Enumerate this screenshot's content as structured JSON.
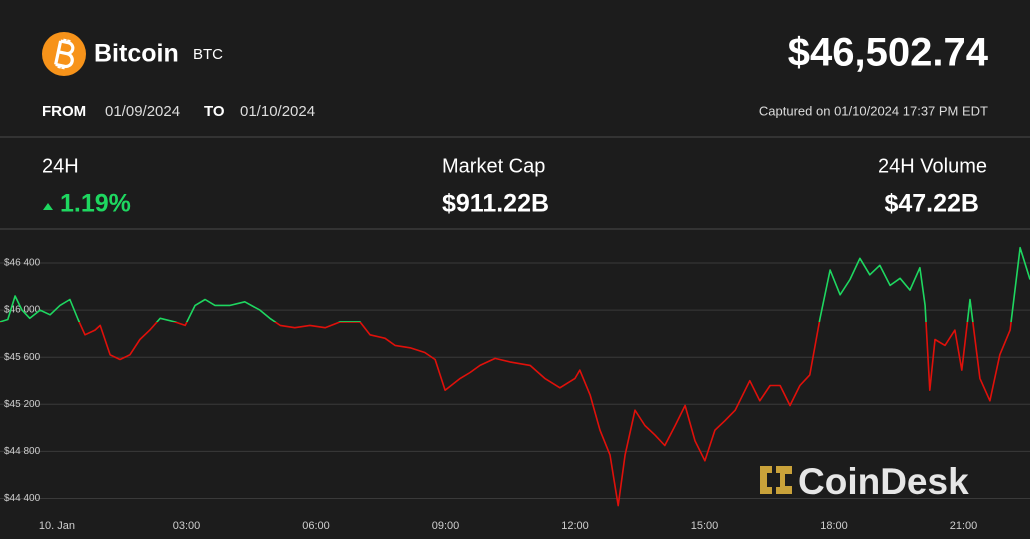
{
  "header": {
    "name": "Bitcoin",
    "symbol": "BTC",
    "price": "$46,502.74",
    "from_label": "FROM",
    "from": "01/09/2024",
    "to_label": "TO",
    "to": "01/10/2024",
    "captured": "Captured on 01/10/2024 17:37 PM EDT"
  },
  "stats": [
    {
      "label": "24H",
      "value": "1.19%"
    },
    {
      "label": "Market Cap",
      "value": "$911.22B"
    },
    {
      "label": "24H Volume",
      "value": "$47.22B"
    }
  ],
  "watermark": "CoinDesk",
  "chart_data": {
    "type": "line",
    "x": [
      -1.32,
      -1.14,
      -0.97,
      -0.81,
      -0.63,
      -0.39,
      -0.16,
      0.07,
      0.3,
      0.49,
      0.65,
      0.88,
      1.0,
      1.23,
      1.46,
      1.69,
      1.92,
      2.15,
      2.39,
      2.73,
      2.97,
      3.2,
      3.43,
      3.66,
      4.01,
      4.35,
      4.7,
      4.93,
      5.17,
      5.51,
      5.86,
      6.21,
      6.56,
      6.79,
      7.02,
      7.25,
      7.6,
      7.83,
      8.18,
      8.52,
      8.76,
      8.99,
      9.34,
      9.57,
      9.8,
      10.15,
      10.49,
      10.96,
      11.3,
      11.65,
      12.0,
      12.11,
      12.35,
      12.58,
      12.81,
      13.0,
      13.16,
      13.39,
      13.62,
      13.85,
      14.08,
      14.32,
      14.55,
      14.78,
      15.01,
      15.24,
      15.47,
      15.71,
      16.05,
      16.28,
      16.52,
      16.75,
      16.98,
      17.21,
      17.44,
      17.67,
      17.91,
      18.14,
      18.37,
      18.6,
      18.83,
      19.06,
      19.3,
      19.53,
      19.76,
      19.99,
      20.11,
      20.22,
      20.34,
      20.57,
      20.8,
      20.96,
      21.15,
      21.38,
      21.61,
      21.84,
      22.08,
      22.31,
      22.54
    ],
    "values": [
      45900,
      45920,
      46120,
      46000,
      45930,
      46000,
      45960,
      46040,
      46090,
      45920,
      45790,
      45830,
      45870,
      45620,
      45580,
      45620,
      45750,
      45830,
      45930,
      45900,
      45870,
      46040,
      46090,
      46040,
      46040,
      46070,
      46000,
      45930,
      45870,
      45850,
      45870,
      45850,
      45900,
      45900,
      45900,
      45790,
      45760,
      45700,
      45680,
      45640,
      45580,
      45320,
      45420,
      45470,
      45530,
      45590,
      45560,
      45530,
      45420,
      45340,
      45420,
      45490,
      45280,
      44980,
      44770,
      44340,
      44770,
      45150,
      45020,
      44940,
      44850,
      45020,
      45190,
      44890,
      44720,
      44980,
      45060,
      45150,
      45400,
      45230,
      45360,
      45360,
      45190,
      45360,
      45450,
      45920,
      46340,
      46130,
      46260,
      46440,
      46300,
      46380,
      46210,
      46270,
      46170,
      46360,
      46040,
      45320,
      45750,
      45700,
      45830,
      45490,
      46090,
      45420,
      45230,
      45620,
      45830,
      46530,
      46260
    ],
    "up_color": "#1ed760",
    "down_color": "#e0100a",
    "xlim": [
      -1.32,
      22.54
    ],
    "ylim": [
      44260,
      46680
    ],
    "xticks": [
      {
        "value": 0,
        "label": "10. Jan"
      },
      {
        "value": 3,
        "label": "03:00"
      },
      {
        "value": 6,
        "label": "06:00"
      },
      {
        "value": 9,
        "label": "09:00"
      },
      {
        "value": 12,
        "label": "12:00"
      },
      {
        "value": 15,
        "label": "15:00"
      },
      {
        "value": 18,
        "label": "18:00"
      },
      {
        "value": 21,
        "label": "21:00"
      }
    ],
    "yticks": [
      {
        "value": 44400,
        "label": "$44 400"
      },
      {
        "value": 44800,
        "label": "$44 800"
      },
      {
        "value": 45200,
        "label": "$45 200"
      },
      {
        "value": 45600,
        "label": "$45 600"
      },
      {
        "value": 46000,
        "label": "$46 000"
      },
      {
        "value": 46400,
        "label": "$46 400"
      }
    ],
    "grid": true
  }
}
